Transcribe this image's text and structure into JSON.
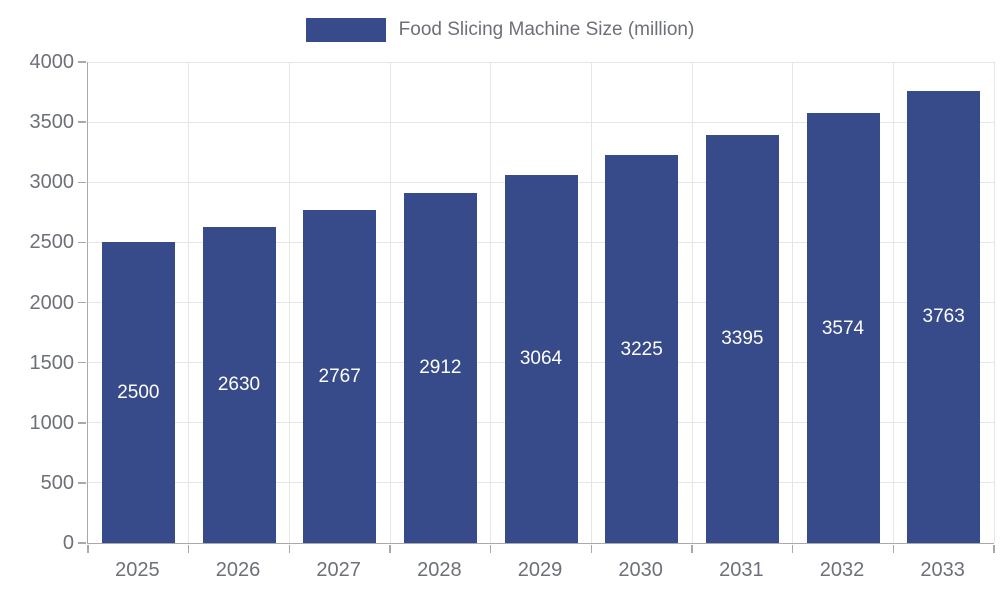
{
  "legend": {
    "label": "Food Slicing Machine Size (million)"
  },
  "chart_data": {
    "type": "bar",
    "title": "Food Slicing Machine Size (million)",
    "categories": [
      "2025",
      "2026",
      "2027",
      "2028",
      "2029",
      "2030",
      "2031",
      "2032",
      "2033"
    ],
    "values": [
      2500,
      2630,
      2767,
      2912,
      3064,
      3225,
      3395,
      3574,
      3763
    ],
    "series": [
      {
        "name": "Food Slicing Machine Size (million)",
        "values": [
          2500,
          2630,
          2767,
          2912,
          3064,
          3225,
          3395,
          3574,
          3763
        ]
      }
    ],
    "xlabel": "",
    "ylabel": "",
    "ylim": [
      0,
      4000
    ],
    "y_ticks": [
      0,
      500,
      1000,
      1500,
      2000,
      2500,
      3000,
      3500,
      4000
    ],
    "grid": true,
    "value_labels": "inside-center",
    "legend_position": "top",
    "colors": {
      "bar": "#374A89",
      "value_label": "#FFFFFF",
      "grid_line": "#E6E6E9",
      "axis_line": "#A9A9A9",
      "axis_label": "#6E7079",
      "legend_text": "#6E7079"
    }
  }
}
